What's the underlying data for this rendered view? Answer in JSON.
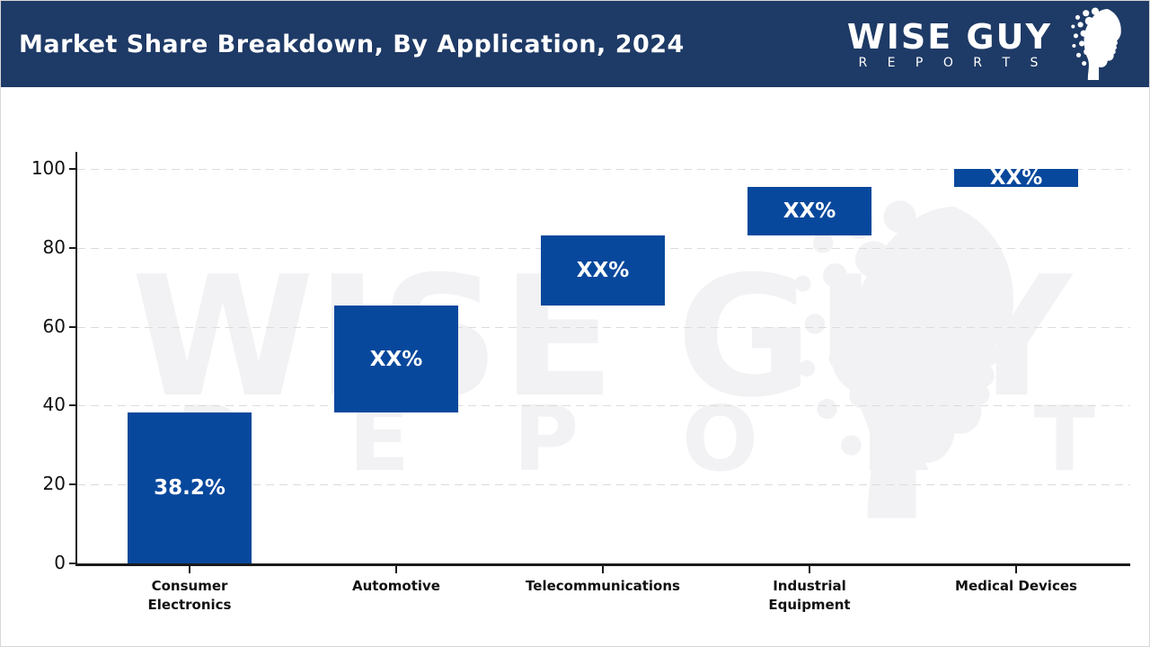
{
  "header": {
    "title": "Market Share Breakdown, By Application, 2024",
    "bg_color": "#1e3a66",
    "logo": {
      "line1": "WISE GUY",
      "line2": "R E P O R T S"
    }
  },
  "watermark": {
    "line1": "WISE GUY",
    "line2": "R E P O R T S"
  },
  "chart_data": {
    "type": "bar",
    "subtype": "waterfall",
    "title": "Market Share Breakdown, By Application, 2024",
    "categories": [
      "Consumer\nElectronics",
      "Automotive",
      "Telecommunications",
      "Industrial\nEquipment",
      "Medical Devices"
    ],
    "segments": [
      {
        "category": "Consumer\nElectronics",
        "start": 0,
        "end": 38.2,
        "label": "38.2%"
      },
      {
        "category": "Automotive",
        "start": 38.2,
        "end": 65.4,
        "label": "XX%"
      },
      {
        "category": "Telecommunications",
        "start": 65.4,
        "end": 83.2,
        "label": "XX%"
      },
      {
        "category": "Industrial\nEquipment",
        "start": 83.2,
        "end": 95.5,
        "label": "XX%"
      },
      {
        "category": "Medical Devices",
        "start": 95.5,
        "end": 100,
        "label": "XX%"
      }
    ],
    "yticks": [
      0,
      20,
      40,
      60,
      80,
      100
    ],
    "ylim": [
      0,
      105
    ],
    "grid": "horizontal-dashed",
    "legend": "none",
    "bar_color": "#08489c",
    "value_label_color": "#ffffff",
    "axis_color": "#1a1a1a"
  }
}
